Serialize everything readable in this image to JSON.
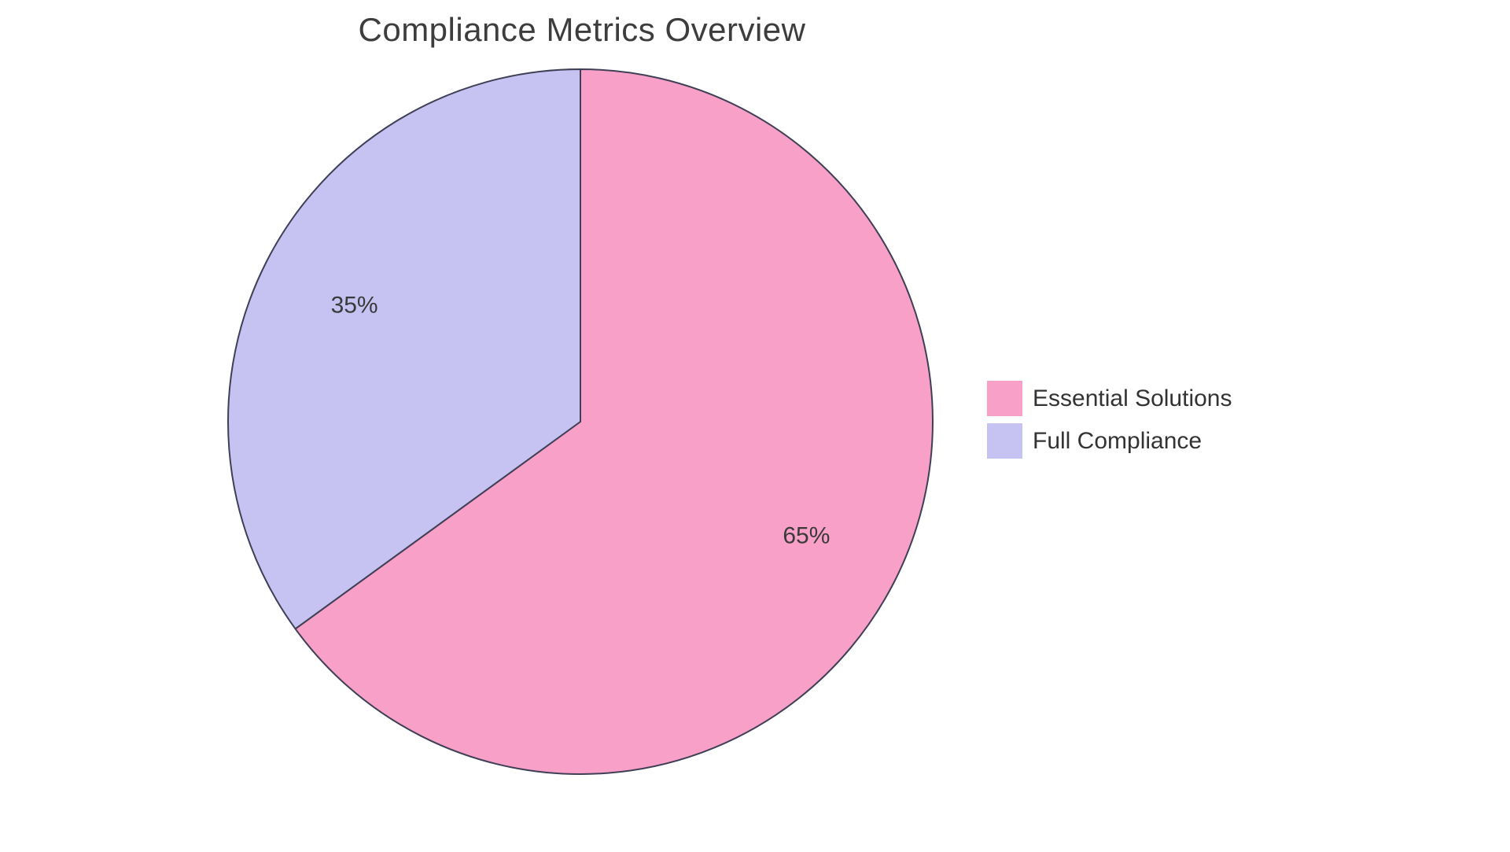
{
  "chart_data": {
    "type": "pie",
    "title": "Compliance Metrics Overview",
    "slices": [
      {
        "label": "Essential Solutions",
        "value": 65,
        "display": "65%",
        "color": "#F8A0C8"
      },
      {
        "label": "Full Compliance",
        "value": 35,
        "display": "35%",
        "color": "#C6C3F2"
      }
    ],
    "start_angle_deg": 0,
    "direction": "clockwise",
    "legend_position": "right",
    "stroke_color": "#3F3F56",
    "stroke_width": 2,
    "label_color": "#3a3a3a",
    "title_color": "#3d3d3d",
    "background": "#ffffff"
  }
}
